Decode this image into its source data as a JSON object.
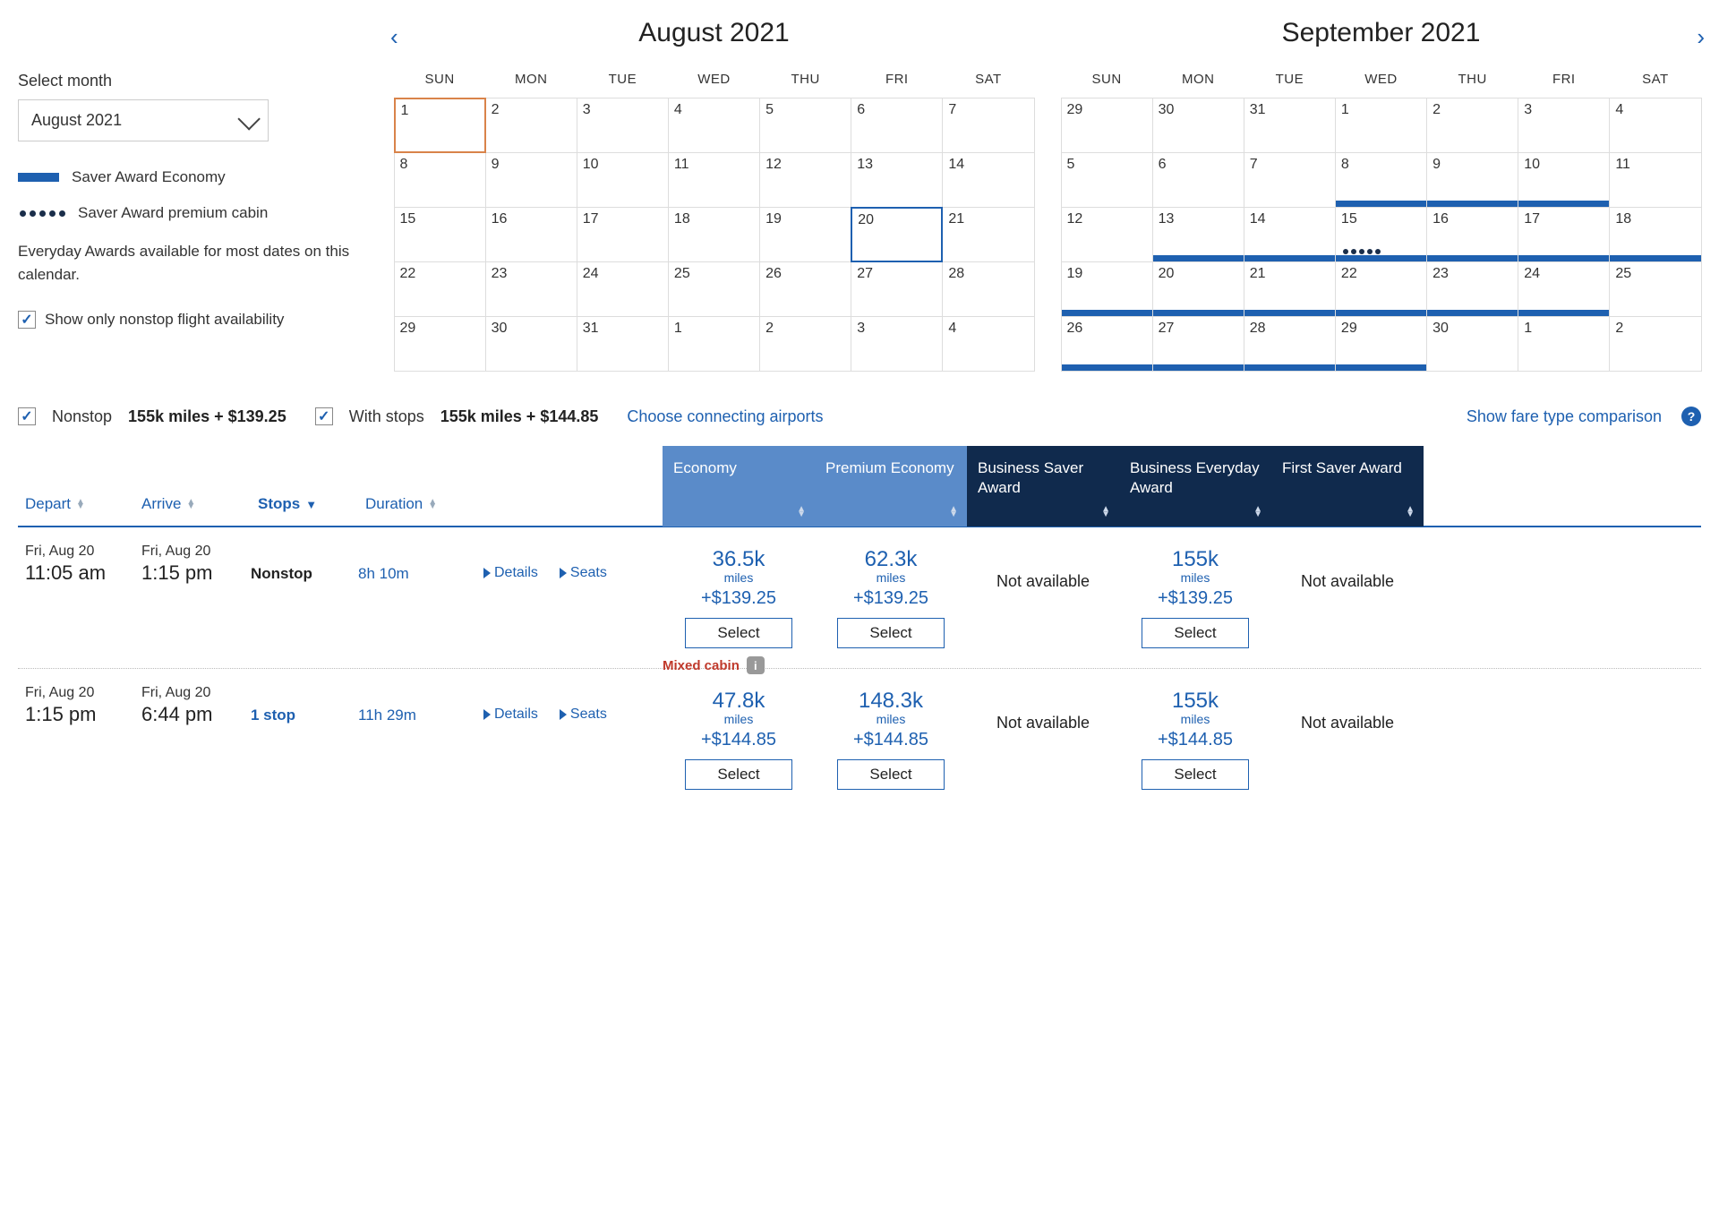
{
  "sidebar": {
    "select_month_label": "Select month",
    "selected_month": "August 2021",
    "legend_saver_economy": "Saver Award Economy",
    "legend_saver_premium": "Saver Award premium cabin",
    "note": "Everyday Awards available for most dates on this calendar.",
    "nonstop_checkbox_label": "Show only nonstop flight availability"
  },
  "calendars": [
    {
      "title": "August 2021",
      "dow": [
        "SUN",
        "MON",
        "TUE",
        "WED",
        "THU",
        "FRI",
        "SAT"
      ],
      "cells": [
        {
          "n": "1",
          "today": true
        },
        {
          "n": "2"
        },
        {
          "n": "3"
        },
        {
          "n": "4"
        },
        {
          "n": "5"
        },
        {
          "n": "6"
        },
        {
          "n": "7"
        },
        {
          "n": "8"
        },
        {
          "n": "9"
        },
        {
          "n": "10"
        },
        {
          "n": "11"
        },
        {
          "n": "12"
        },
        {
          "n": "13"
        },
        {
          "n": "14"
        },
        {
          "n": "15"
        },
        {
          "n": "16"
        },
        {
          "n": "17"
        },
        {
          "n": "18"
        },
        {
          "n": "19"
        },
        {
          "n": "20",
          "selected": true
        },
        {
          "n": "21"
        },
        {
          "n": "22"
        },
        {
          "n": "23"
        },
        {
          "n": "24"
        },
        {
          "n": "25"
        },
        {
          "n": "26"
        },
        {
          "n": "27"
        },
        {
          "n": "28"
        },
        {
          "n": "29"
        },
        {
          "n": "30"
        },
        {
          "n": "31"
        },
        {
          "n": "1"
        },
        {
          "n": "2"
        },
        {
          "n": "3"
        },
        {
          "n": "4"
        }
      ]
    },
    {
      "title": "September 2021",
      "dow": [
        "SUN",
        "MON",
        "TUE",
        "WED",
        "THU",
        "FRI",
        "SAT"
      ],
      "cells": [
        {
          "n": "29"
        },
        {
          "n": "30"
        },
        {
          "n": "31"
        },
        {
          "n": "1"
        },
        {
          "n": "2"
        },
        {
          "n": "3"
        },
        {
          "n": "4"
        },
        {
          "n": "5"
        },
        {
          "n": "6"
        },
        {
          "n": "7"
        },
        {
          "n": "8",
          "bar": true
        },
        {
          "n": "9",
          "bar": true
        },
        {
          "n": "10",
          "bar": true
        },
        {
          "n": "11"
        },
        {
          "n": "12"
        },
        {
          "n": "13",
          "bar": true
        },
        {
          "n": "14",
          "bar": true
        },
        {
          "n": "15",
          "bar": true,
          "dots": true
        },
        {
          "n": "16",
          "bar": true
        },
        {
          "n": "17",
          "bar": true
        },
        {
          "n": "18",
          "bar": true
        },
        {
          "n": "19",
          "bar": true
        },
        {
          "n": "20",
          "bar": true
        },
        {
          "n": "21",
          "bar": true
        },
        {
          "n": "22",
          "bar": true
        },
        {
          "n": "23",
          "bar": true
        },
        {
          "n": "24",
          "bar": true
        },
        {
          "n": "25"
        },
        {
          "n": "26",
          "bar": true
        },
        {
          "n": "27",
          "bar": true
        },
        {
          "n": "28",
          "bar": true
        },
        {
          "n": "29",
          "bar": true
        },
        {
          "n": "30"
        },
        {
          "n": "1"
        },
        {
          "n": "2"
        }
      ]
    }
  ],
  "filters": {
    "nonstop_label": "Nonstop",
    "nonstop_price": "155k miles + $139.25",
    "withstops_label": "With stops",
    "withstops_price": "155k miles + $144.85",
    "connecting_link": "Choose connecting airports",
    "comparison_link": "Show fare type comparison"
  },
  "columns": {
    "depart": "Depart",
    "arrive": "Arrive",
    "stops": "Stops",
    "duration": "Duration",
    "fares": [
      "Economy",
      "Premium Economy",
      "Business Saver Award",
      "Business Everyday Award",
      "First Saver Award"
    ]
  },
  "labels": {
    "miles": "miles",
    "select": "Select",
    "details": "Details",
    "seats": "Seats",
    "not_available": "Not available",
    "mixed_cabin": "Mixed cabin"
  },
  "flights": [
    {
      "depart_date": "Fri, Aug 20",
      "depart_time": "11:05 am",
      "arrive_date": "Fri, Aug 20",
      "arrive_time": "1:15 pm",
      "stops": "Nonstop",
      "stops_bold": true,
      "duration": "8h 10m",
      "mixed": false,
      "fares": [
        {
          "miles": "36.5k",
          "fee": "+$139.25",
          "available": true
        },
        {
          "miles": "62.3k",
          "fee": "+$139.25",
          "available": true
        },
        {
          "available": false
        },
        {
          "miles": "155k",
          "fee": "+$139.25",
          "available": true
        },
        {
          "available": false
        }
      ]
    },
    {
      "depart_date": "Fri, Aug 20",
      "depart_time": "1:15 pm",
      "arrive_date": "Fri, Aug 20",
      "arrive_time": "6:44 pm",
      "stops": "1 stop",
      "stops_bold": false,
      "duration": "11h 29m",
      "mixed": true,
      "fares": [
        {
          "miles": "47.8k",
          "fee": "+$144.85",
          "available": true
        },
        {
          "miles": "148.3k",
          "fee": "+$144.85",
          "available": true
        },
        {
          "available": false
        },
        {
          "miles": "155k",
          "fee": "+$144.85",
          "available": true
        },
        {
          "available": false
        }
      ]
    }
  ],
  "colors": {
    "primary": "#1e60b0",
    "fare_light": "#5a8bc9",
    "fare_dark": "#102a4d",
    "today_border": "#d9834a",
    "mixed_text": "#c0392b"
  }
}
